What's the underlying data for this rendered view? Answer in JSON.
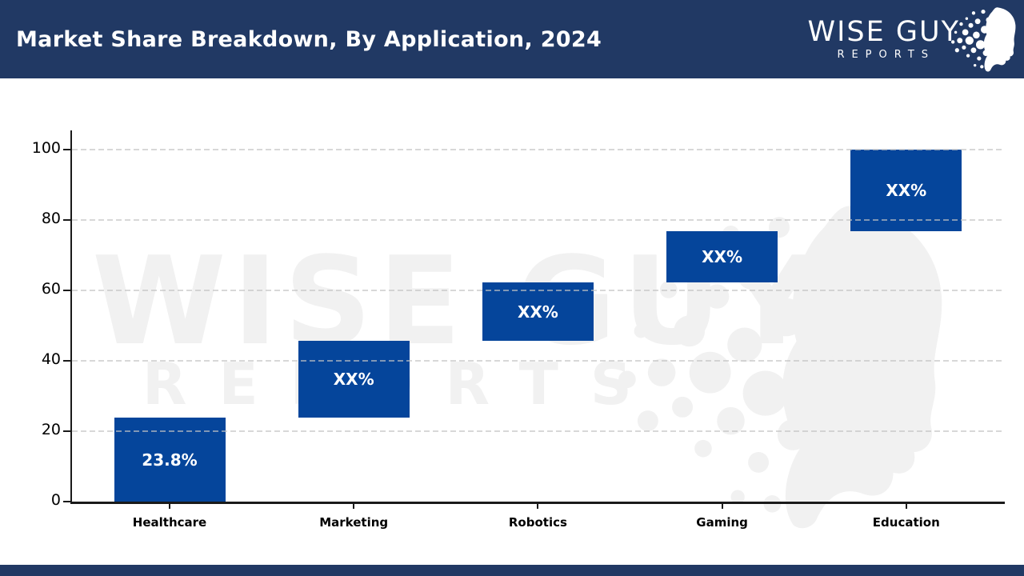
{
  "header": {
    "title": "Market Share Breakdown, By Application, 2024",
    "bg_color": "#213964",
    "logo": {
      "line1": "WISE GUY",
      "line2": "REPORTS"
    }
  },
  "watermark": {
    "line1": "WISE GUY",
    "line2": "REPORTS"
  },
  "footer": {
    "bg_color": "#213964"
  },
  "chart_data": {
    "type": "bar",
    "subtype": "waterfall",
    "title": "Market Share Breakdown, By Application, 2024",
    "categories": [
      "Healthcare",
      "Marketing",
      "Robotics",
      "Gaming",
      "Education"
    ],
    "segments": [
      {
        "category": "Healthcare",
        "start": 0,
        "end": 23.8,
        "label": "23.8%"
      },
      {
        "category": "Marketing",
        "start": 23.8,
        "end": 45.6,
        "label": "XX%"
      },
      {
        "category": "Robotics",
        "start": 45.6,
        "end": 62.2,
        "label": "XX%"
      },
      {
        "category": "Gaming",
        "start": 62.2,
        "end": 76.8,
        "label": "XX%"
      },
      {
        "category": "Education",
        "start": 76.8,
        "end": 100,
        "label": "XX%"
      }
    ],
    "xlabel": "",
    "ylabel": "",
    "ylim": [
      0,
      100
    ],
    "yticks": [
      0,
      20,
      40,
      60,
      80,
      100
    ],
    "grid": "horizontal-dashed",
    "legend": "none",
    "bar_color": "#05459b",
    "bar_label_color": "#ffffff",
    "axis_color": "#1a1a1a"
  }
}
